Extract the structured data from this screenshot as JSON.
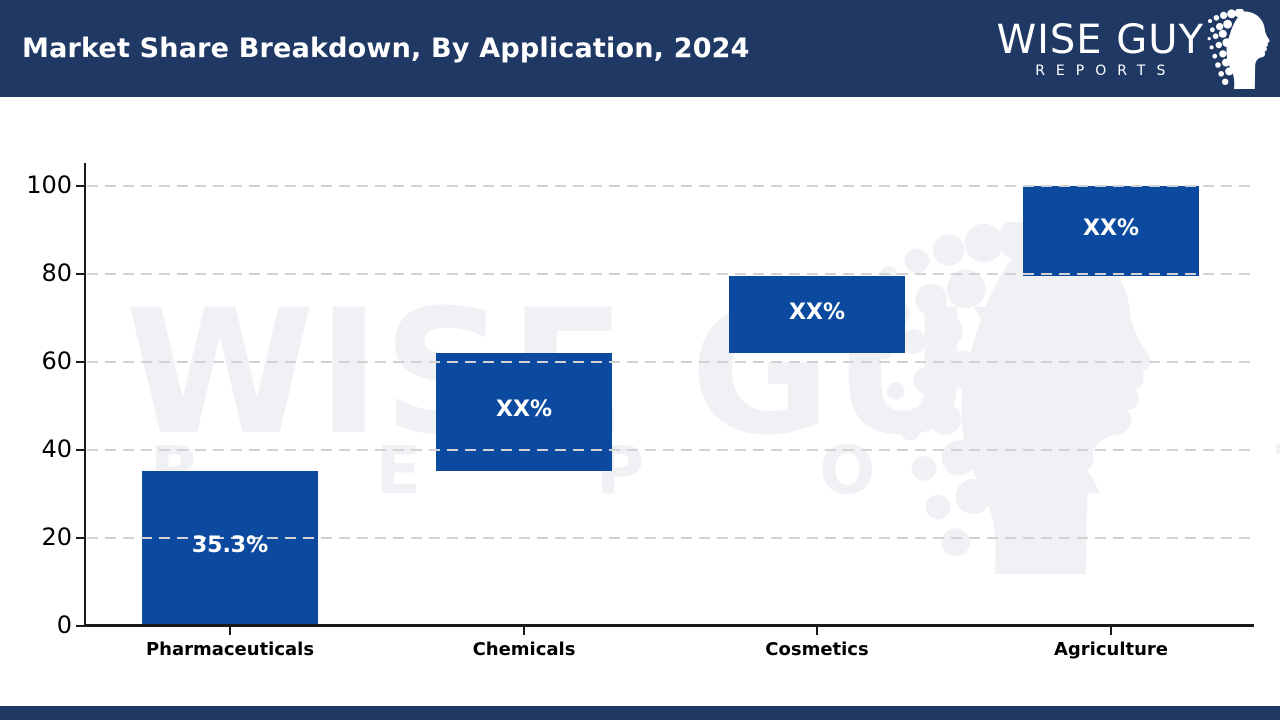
{
  "header": {
    "title": "Market Share Breakdown, By Application, 2024",
    "bg_color": "#1f3864",
    "logo": {
      "line1": "WISE GUY",
      "line2": "REPORTS"
    }
  },
  "watermark": {
    "line1": "WISE GUY",
    "line2": "R E P O R T S"
  },
  "footer": {
    "bg_color": "#1f3864"
  },
  "chart_data": {
    "type": "bar",
    "subtype": "floating-waterfall",
    "title": "Market Share Breakdown, By Application, 2024",
    "categories": [
      "Pharmaceuticals",
      "Chemicals",
      "Cosmetics",
      "Agriculture"
    ],
    "bars": [
      {
        "category": "Pharmaceuticals",
        "start": 0,
        "end": 35.3,
        "label": "35.3%"
      },
      {
        "category": "Chemicals",
        "start": 35.3,
        "end": 62.0,
        "label": "XX%"
      },
      {
        "category": "Cosmetics",
        "start": 62.0,
        "end": 79.5,
        "label": "XX%"
      },
      {
        "category": "Agriculture",
        "start": 79.5,
        "end": 100,
        "label": "XX%"
      }
    ],
    "xlabel": "",
    "ylabel": "",
    "ylim": [
      0,
      100
    ],
    "yticks": [
      0,
      20,
      40,
      60,
      80,
      100
    ],
    "grid": "horizontal-dashed",
    "legend": "none",
    "bar_color": "#0b4a9e",
    "bar_label_color": "#ffffff",
    "grid_color": "#d2d2d2",
    "axis_color": "#1a1a1a"
  }
}
